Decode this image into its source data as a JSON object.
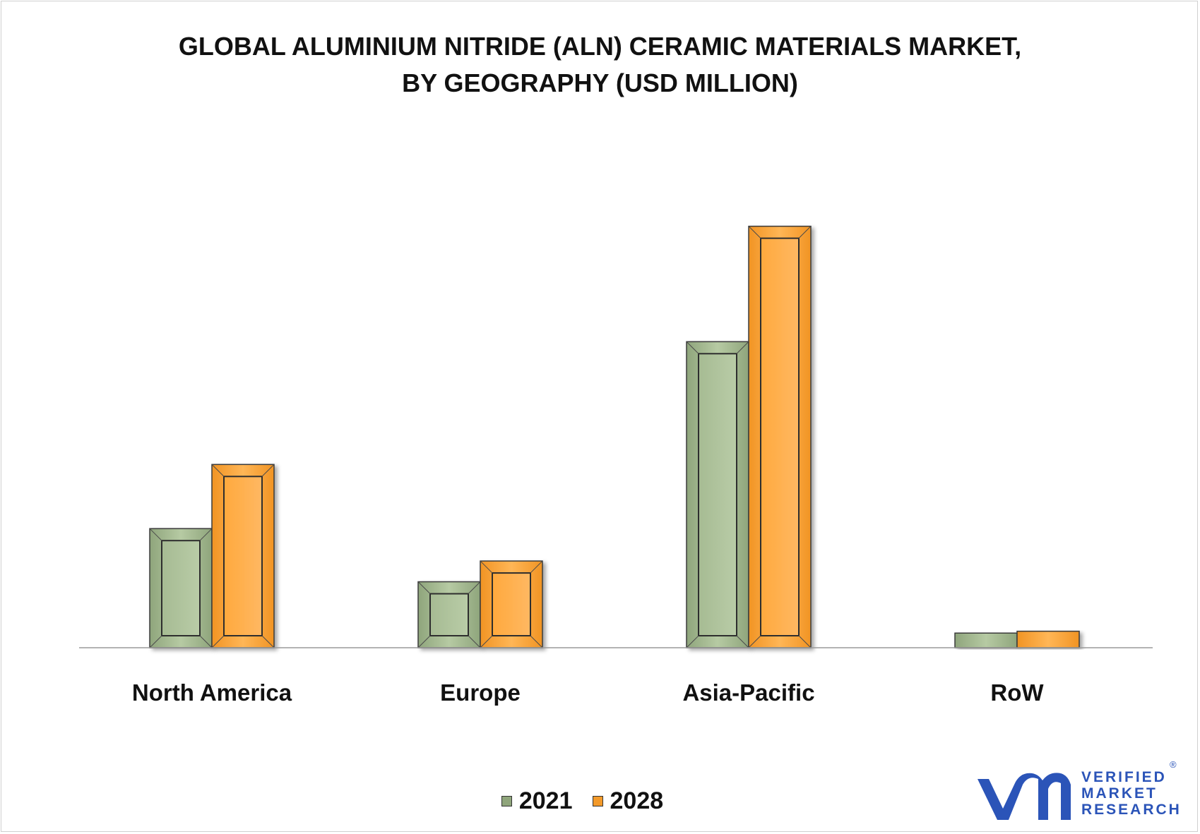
{
  "title_lines": [
    "GLOBAL ALUMINIUM NITRIDE (ALN) CERAMIC MATERIALS MARKET,",
    "BY GEOGRAPHY (USD MILLION)"
  ],
  "chart_data": {
    "type": "bar",
    "categories": [
      "North America",
      "Europe",
      "Asia-Pacific",
      "RoW"
    ],
    "series": [
      {
        "name": "2021",
        "values": [
          195,
          108,
          501,
          24
        ]
      },
      {
        "name": "2028",
        "values": [
          300,
          142,
          690,
          27
        ]
      }
    ],
    "ylim": [
      0,
      700
    ],
    "grid": false,
    "legend_position": "bottom",
    "colors": {
      "2021": "#a9be96",
      "2028": "#ffa83a"
    }
  },
  "legend": [
    {
      "label": "2021",
      "color": "#8fa57b"
    },
    {
      "label": "2028",
      "color": "#f39a2a"
    }
  ],
  "logo": {
    "lines": [
      "VERIFIED",
      "MARKET",
      "RESEARCH"
    ],
    "registered": "®",
    "color": "#2b54b8"
  }
}
